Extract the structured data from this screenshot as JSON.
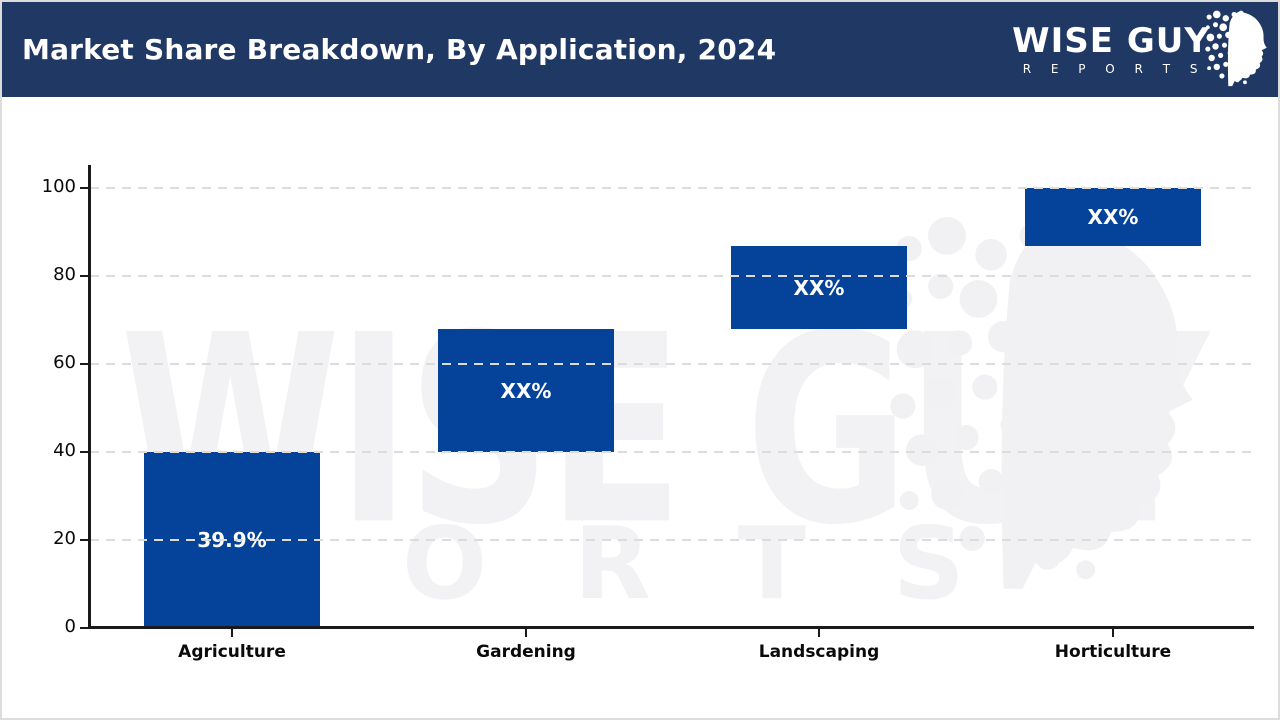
{
  "header": {
    "title": "Market Share Breakdown, By Application, 2024",
    "logo": {
      "line1": "WISE GUY",
      "line2": "R E P O R T S"
    }
  },
  "watermark": {
    "line1": "WISE GUY",
    "line2": "P O R T S"
  },
  "chart_data": {
    "type": "bar",
    "subtype": "waterfall",
    "title": "Market Share Breakdown, By Application, 2024",
    "categories": [
      "Agriculture",
      "Gardening",
      "Landscaping",
      "Horticulture"
    ],
    "segments": [
      {
        "category": "Agriculture",
        "start": 0,
        "end": 39.9,
        "label": "39.9%"
      },
      {
        "category": "Gardening",
        "start": 39.9,
        "end": 67.9,
        "label": "XX%"
      },
      {
        "category": "Landscaping",
        "start": 67.9,
        "end": 86.8,
        "label": "XX%"
      },
      {
        "category": "Horticulture",
        "start": 86.8,
        "end": 100,
        "label": "XX%"
      }
    ],
    "xlabel": "",
    "ylabel": "",
    "ylim": [
      0,
      105
    ],
    "yticks": [
      0,
      20,
      40,
      60,
      80,
      100
    ],
    "grid": "horizontal dashed, drawn over bars",
    "legend": "none",
    "bar_color": "#05439B",
    "bar_label_color": "#ffffff"
  },
  "colors": {
    "header_bg": "#1F3864",
    "bar": "#05439B",
    "grid": "#dcdcdc",
    "axis": "#1a1a1a",
    "watermark": "#f2f2f4",
    "canvas_border": "#dcdcdc"
  }
}
